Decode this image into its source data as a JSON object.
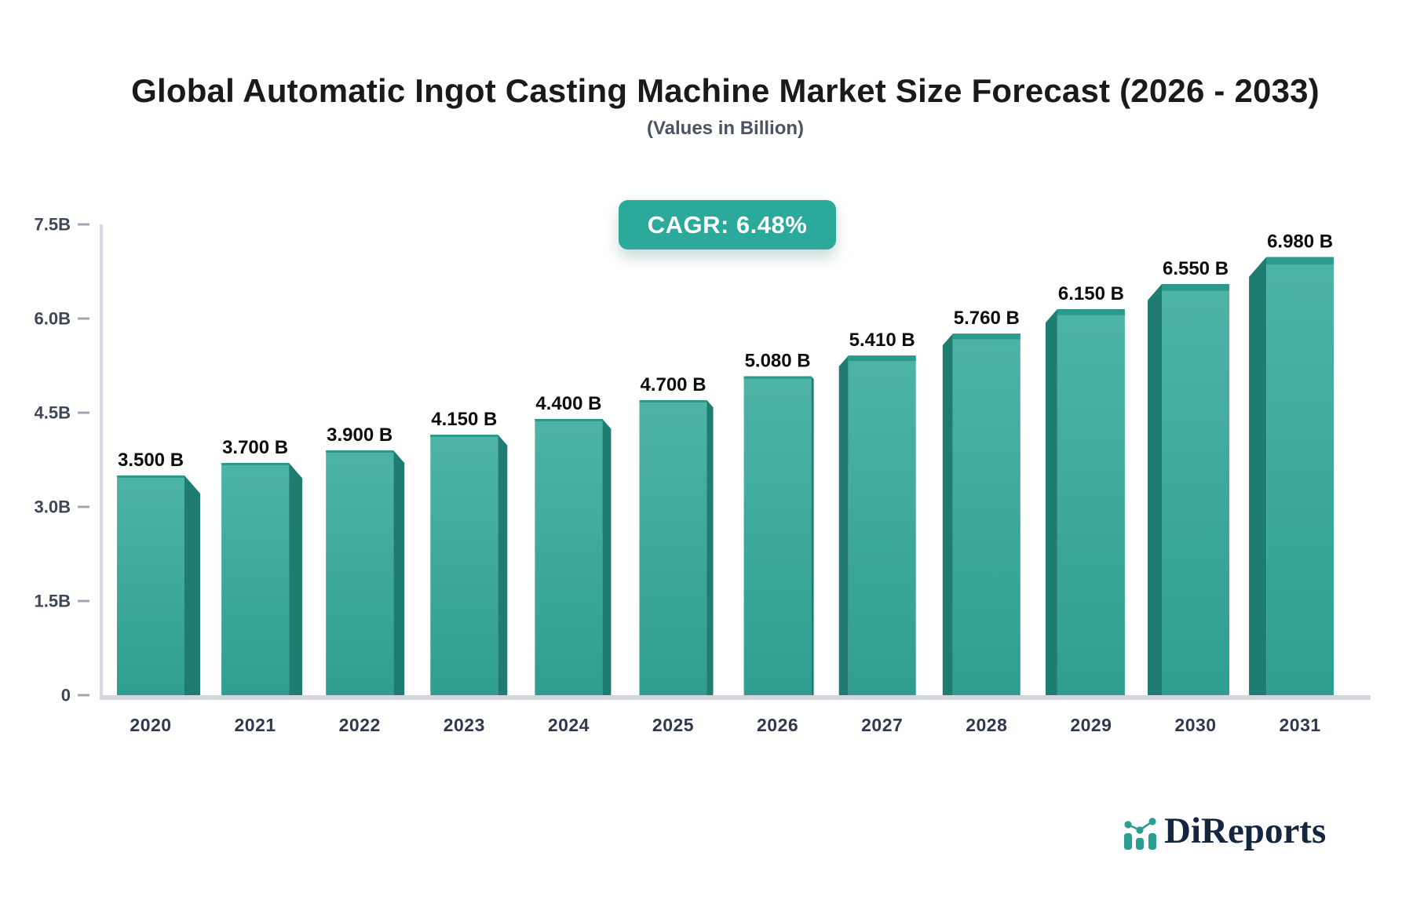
{
  "header": {
    "title": "Global Automatic Ingot Casting Machine Market Size Forecast (2026 - 2033)",
    "subtitle": "(Values in Billion)",
    "cagr_badge": "CAGR: 6.48%"
  },
  "chart_data": {
    "type": "bar",
    "title": "Global Automatic Ingot Casting Machine Market Size Forecast (2026 - 2033)",
    "subtitle": "(Values in Billion)",
    "cagr": "6.48%",
    "categories": [
      "2020",
      "2021",
      "2022",
      "2023",
      "2024",
      "2025",
      "2026",
      "2027",
      "2028",
      "2029",
      "2030",
      "2031"
    ],
    "values": [
      3.5,
      3.7,
      3.9,
      4.15,
      4.4,
      4.7,
      5.08,
      5.41,
      5.76,
      6.15,
      6.55,
      6.98
    ],
    "bar_labels": [
      "3.500 B",
      "3.700 B",
      "3.900 B",
      "4.150 B",
      "4.400 B",
      "4.700 B",
      "5.080 B",
      "5.410 B",
      "5.760 B",
      "6.150 B",
      "6.550 B",
      "6.980 B"
    ],
    "xlabel": "",
    "ylabel": "",
    "ylim": [
      0,
      7.5
    ],
    "yticks": [
      {
        "value": 0,
        "label": "0"
      },
      {
        "value": 1.5,
        "label": "1.5B"
      },
      {
        "value": 3.0,
        "label": "3.0B"
      },
      {
        "value": 4.5,
        "label": "4.5B"
      },
      {
        "value": 6.0,
        "label": "6.0B"
      },
      {
        "value": 7.5,
        "label": "7.5B"
      }
    ],
    "grid": false,
    "legend": null,
    "bar_style": "3d-perspective-teal"
  },
  "logo": {
    "text": "DiReports",
    "icon": "bar-chart-logo-icon"
  },
  "colors": {
    "background": "#FFFFFF",
    "accent_teal": "#2BA99B",
    "bar_front_top": "#4DB4A6",
    "bar_front_bottom": "#2F9E90",
    "bar_side": "#1E7C71",
    "bar_top_face": "#2D998B",
    "axis_line": "#D6D9DF",
    "baseline": "#D3D6DC",
    "tick_mark": "#A0A7B4",
    "tick_text": "#3E4757",
    "year_text": "#2F3A4F",
    "value_text": "#0D0D0D",
    "title_text": "#1A1A1A",
    "subtitle_text": "#4A5462",
    "badge_bg": "#2BA99B",
    "badge_text": "#FFFFFF",
    "logo_navy": "#17263F",
    "logo_teal": "#2B9D92"
  }
}
